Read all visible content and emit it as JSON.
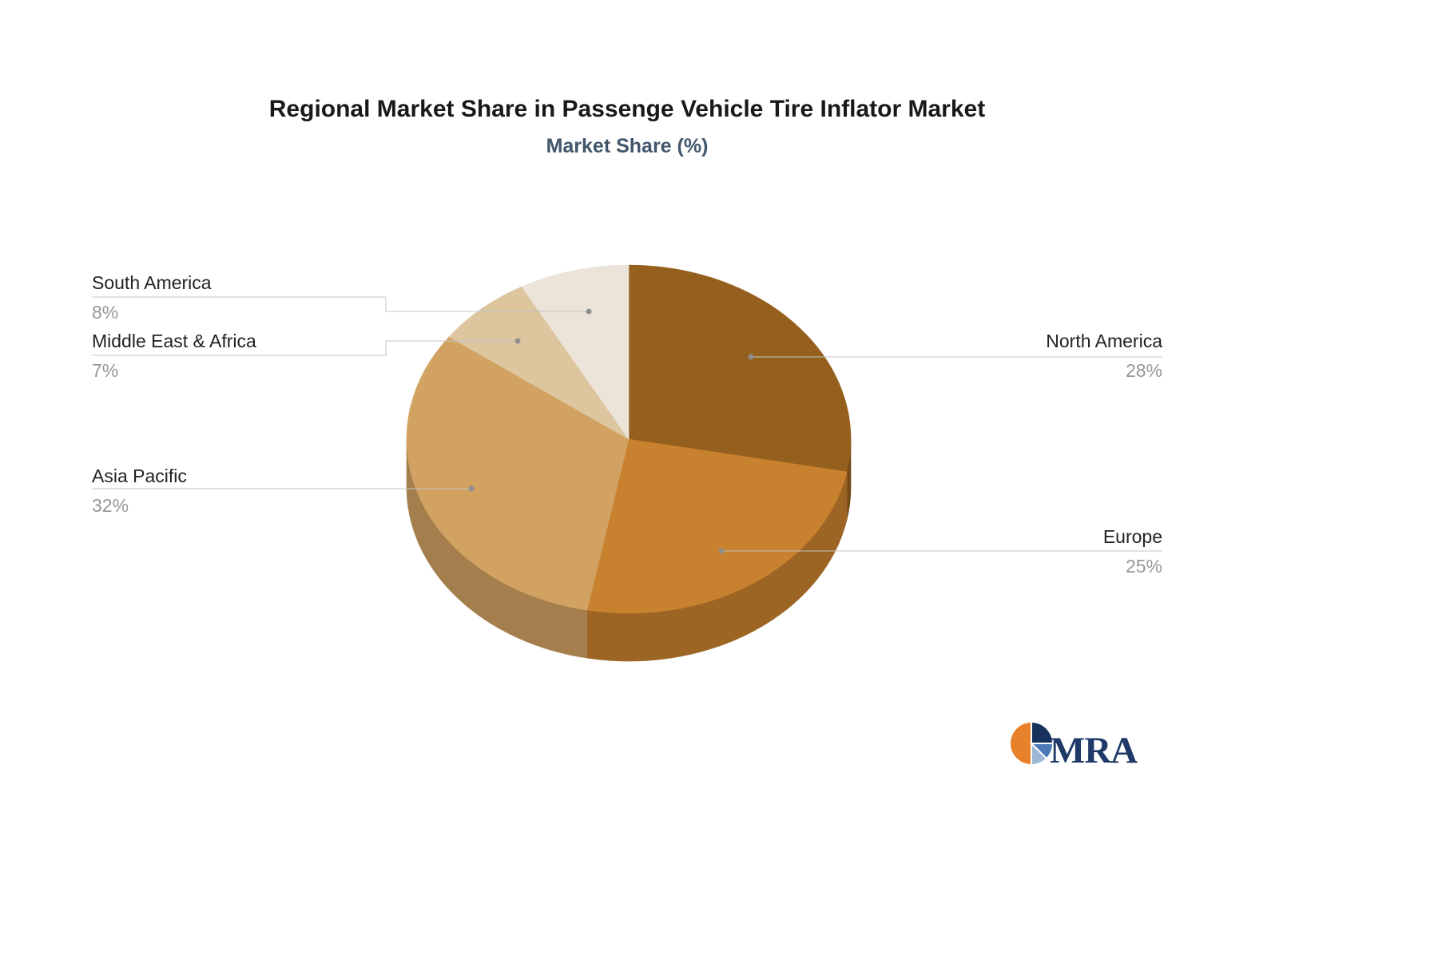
{
  "chart_data": {
    "type": "pie",
    "title": "Regional Market Share in Passenge Vehicle Tire Inflator Market",
    "subtitle": "Market Share (%)",
    "effect": "3d",
    "start_angle_deg": 0,
    "direction": "clockwise",
    "legend_position": "none",
    "labels_style": "callout",
    "slices": [
      {
        "label": "North America",
        "value": 28,
        "pct_label": "28%",
        "color": "#955f1d",
        "side": "right"
      },
      {
        "label": "Europe",
        "value": 25,
        "pct_label": "25%",
        "color": "#c8812e",
        "side": "right"
      },
      {
        "label": "Asia Pacific",
        "value": 32,
        "pct_label": "32%",
        "color": "#d2a263",
        "side": "left"
      },
      {
        "label": "Middle East & Africa",
        "value": 7,
        "pct_label": "7%",
        "color": "#ddc59e",
        "side": "left"
      },
      {
        "label": "South America",
        "value": 8,
        "pct_label": "8%",
        "color": "#ece3d9",
        "side": "left"
      }
    ]
  },
  "logo": {
    "text": "MRA",
    "colors": {
      "orange": "#e8822a",
      "navy": "#16325c",
      "steel": "#4a7ab5",
      "light": "#9db7d6",
      "text": "#1f3a68"
    }
  }
}
